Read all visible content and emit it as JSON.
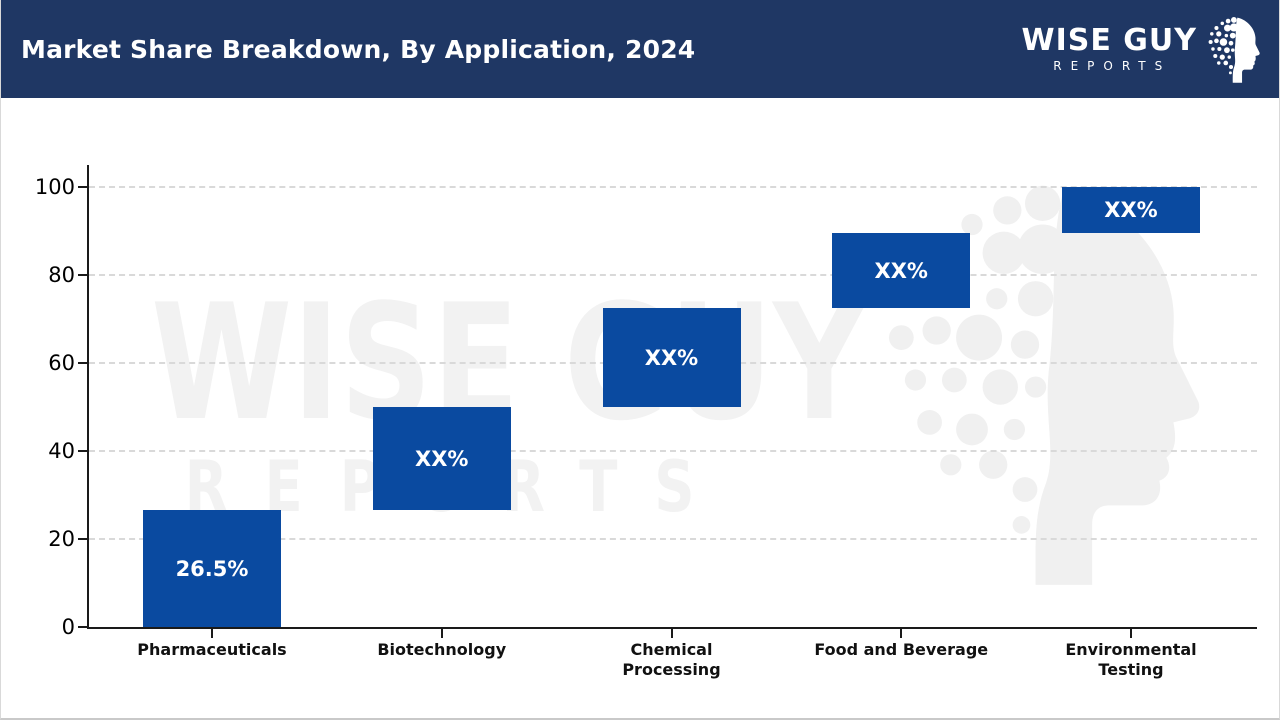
{
  "header": {
    "title": "Market Share Breakdown, By Application, 2024",
    "logo": {
      "line1": "WISE GUY",
      "line2": "REPORTS",
      "icon": "dotted-head-icon"
    }
  },
  "watermark": {
    "line1": "WISE GUY",
    "line2": "REPORTS"
  },
  "chart_data": {
    "type": "bar",
    "subtype": "waterfall-floating-bars",
    "title": "Market Share Breakdown, By Application, 2024",
    "xlabel": "",
    "ylabel": "",
    "categories": [
      "Pharmaceuticals",
      "Biotechnology",
      "Chemical Processing",
      "Food and Beverage",
      "Environmental Testing"
    ],
    "category_label_lines": [
      [
        "Pharmaceuticals"
      ],
      [
        "Biotechnology"
      ],
      [
        "Chemical",
        "Processing"
      ],
      [
        "Food and Beverage"
      ],
      [
        "Environmental",
        "Testing"
      ]
    ],
    "bars": [
      {
        "category": "Pharmaceuticals",
        "start": 0,
        "end": 26.5,
        "label": "26.5%"
      },
      {
        "category": "Biotechnology",
        "start": 26.5,
        "end": 50,
        "label": "XX%"
      },
      {
        "category": "Chemical Processing",
        "start": 50,
        "end": 72.5,
        "label": "XX%"
      },
      {
        "category": "Food and Beverage",
        "start": 72.5,
        "end": 89.5,
        "label": "XX%"
      },
      {
        "category": "Environmental Testing",
        "start": 89.5,
        "end": 100,
        "label": "XX%"
      }
    ],
    "yticks": [
      0,
      20,
      40,
      60,
      80,
      100
    ],
    "ylim": [
      0,
      105
    ],
    "grid": "horizontal-dashed",
    "legend": "none",
    "colors": {
      "bar": "#0a4aa0",
      "header_bg": "#1f3764",
      "bar_label": "#ffffff",
      "grid": "#d9d9d9",
      "axis": "#1a1a1a",
      "watermark": "#f2f2f2"
    }
  }
}
